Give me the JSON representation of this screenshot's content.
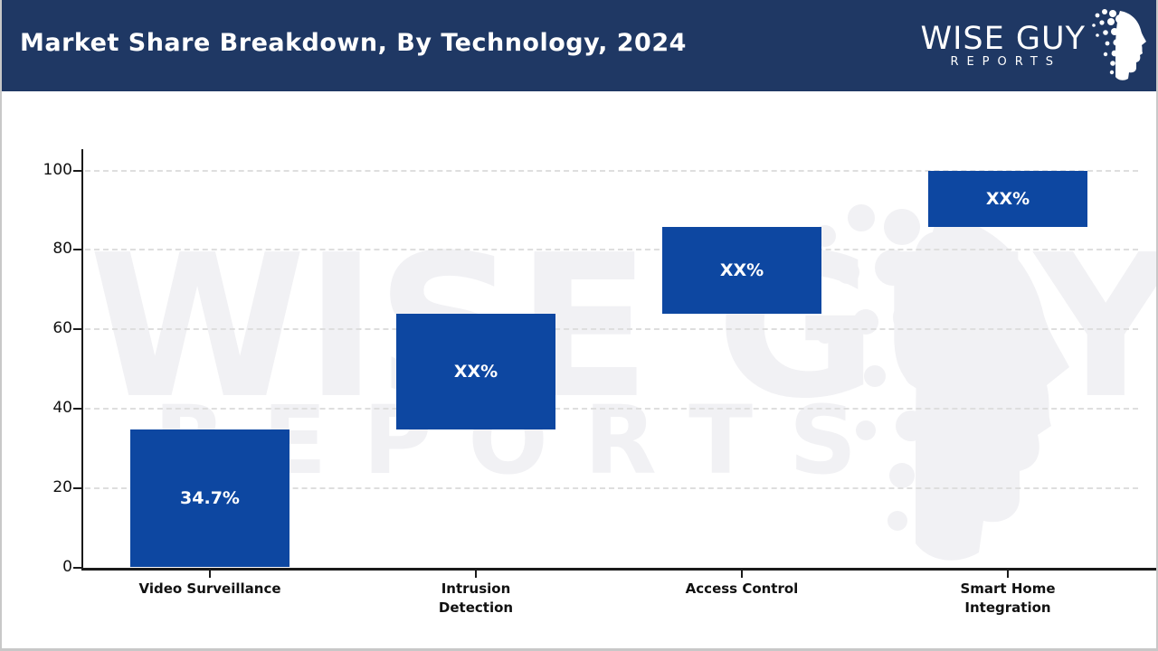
{
  "header": {
    "title": "Market Share Breakdown, By Technology, 2024",
    "logo": {
      "line1": "WISE GUY",
      "line2": "REPORTS"
    }
  },
  "watermark": {
    "line1": "WISE GUY",
    "line2": "REPORTS"
  },
  "chart_data": {
    "type": "bar",
    "subtype": "waterfall",
    "title": "Market Share Breakdown, By Technology, 2024",
    "categories": [
      "Video Surveillance",
      "Intrusion\nDetection",
      "Access Control",
      "Smart Home\nIntegration"
    ],
    "segments": [
      {
        "category": "Video Surveillance",
        "start": 0,
        "end": 34.7,
        "label": "34.7%"
      },
      {
        "category": "Intrusion Detection",
        "start": 34.7,
        "end": 63.9,
        "label": "XX%"
      },
      {
        "category": "Access Control",
        "start": 63.9,
        "end": 85.8,
        "label": "XX%"
      },
      {
        "category": "Smart Home Integration",
        "start": 85.8,
        "end": 100,
        "label": "XX%"
      }
    ],
    "ylim": [
      0,
      100
    ],
    "yticks": [
      0,
      20,
      40,
      60,
      80,
      100
    ],
    "xlabel": "",
    "ylabel": "",
    "grid": true,
    "legend": false,
    "bar_color": "#0d47a1",
    "bar_label_color": "#ffffff",
    "gridline_color": "#dedede",
    "axis_color": "#1a1a1a",
    "header_color": "#1f3864"
  }
}
